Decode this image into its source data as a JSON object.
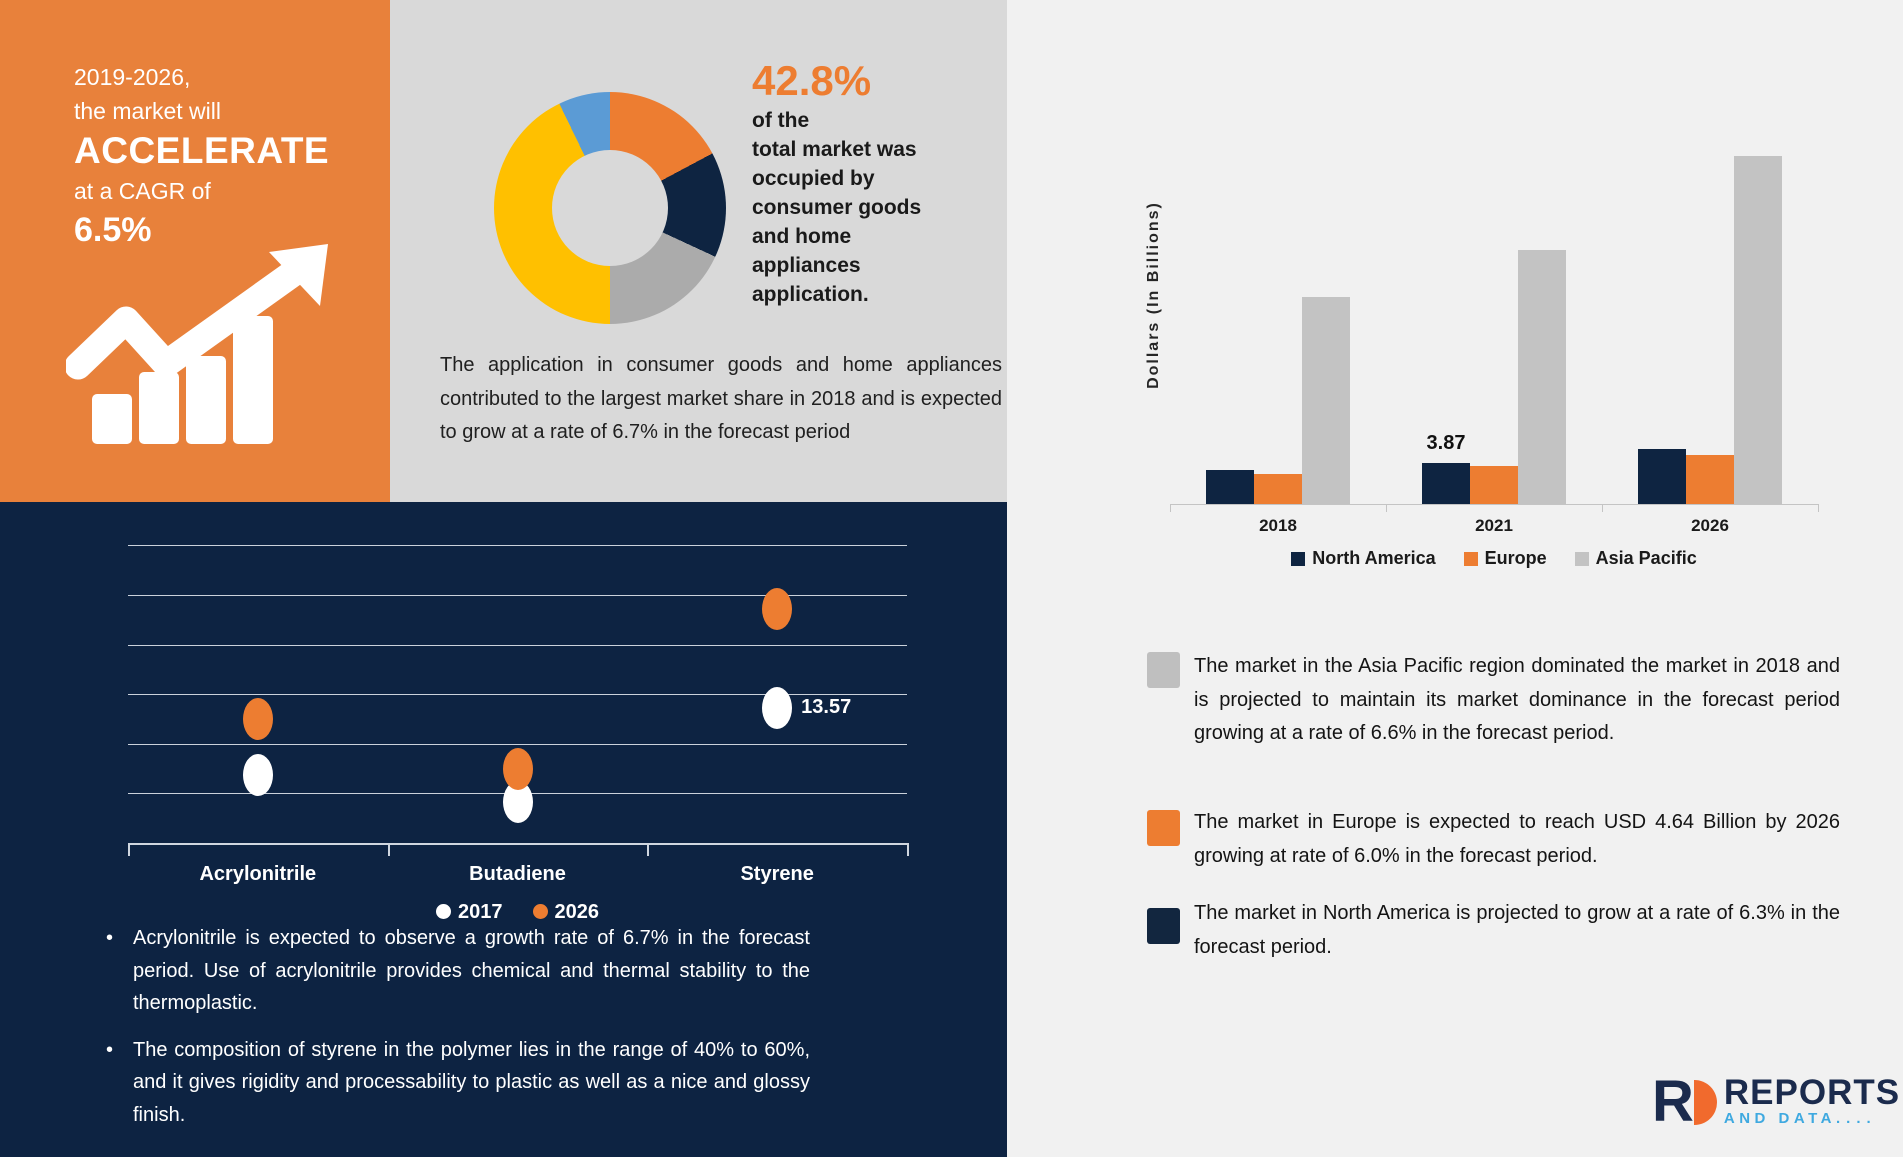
{
  "highlight_panel": {
    "period": "2019-2026,",
    "line1": "the market will",
    "accelerate": "ACCELERATE",
    "line2": "at a CAGR of",
    "cagr": "6.5%"
  },
  "application_panel": {
    "stat_value": "42.8%",
    "stat_lines": [
      "of the",
      "total market was",
      "occupied by",
      "consumer goods",
      "and home",
      "appliances",
      "application."
    ],
    "caption": "The application in consumer goods and home appliances contributed to the largest market share in 2018 and is expected to grow at a rate of 6.7% in the forecast period"
  },
  "chart_data": [
    {
      "type": "pie",
      "subtype": "donut",
      "highlight_value": "42.8%",
      "slices": [
        {
          "label": "",
          "value": 17.2,
          "color": "#ED7D31"
        },
        {
          "label": "",
          "value": 14.7,
          "color": "#0E2441"
        },
        {
          "label": "",
          "value": 18.1,
          "color": "#ABABAB"
        },
        {
          "label": "Consumer goods and home appliances",
          "value": 42.8,
          "color": "#FFC000"
        },
        {
          "label": "",
          "value": 7.2,
          "color": "#5B9BD5"
        }
      ],
      "legend_position": "none"
    },
    {
      "type": "bar",
      "categories": [
        "2018",
        "2021",
        "2026"
      ],
      "series": [
        {
          "name": "North America",
          "color": "#0E2441",
          "values": [
            3.2,
            3.87,
            5.2
          ]
        },
        {
          "name": "Europe",
          "color": "#ED7D31",
          "values": [
            2.8,
            3.6,
            4.64
          ]
        },
        {
          "name": "Asia Pacific",
          "color": "#C3C3C3",
          "values": [
            19.5,
            24.0,
            32.8
          ]
        }
      ],
      "data_labels": [
        {
          "series": "North America",
          "category": "2021",
          "text": "3.87"
        }
      ],
      "title": "",
      "xlabel": "",
      "ylabel": "Dollars (In Billions)",
      "ylim": [
        0,
        34
      ],
      "grid": false,
      "legend_position": "bottom"
    },
    {
      "type": "scatter",
      "subtype": "dot-plot",
      "categories": [
        "Acrylonitrile",
        "Butadiene",
        "Styrene"
      ],
      "series": [
        {
          "name": "2017",
          "color": "#FFFFFF",
          "values": [
            6.9,
            4.1,
            13.57
          ]
        },
        {
          "name": "2026",
          "color": "#ED7D31",
          "values": [
            12.5,
            7.5,
            23.6
          ]
        }
      ],
      "data_labels": [
        {
          "series": "2017",
          "category": "Styrene",
          "text": "13.57"
        }
      ],
      "gridline_values": [
        5,
        10,
        15,
        20,
        25,
        30
      ],
      "ylim": [
        0,
        34
      ],
      "grid": true,
      "legend_position": "bottom"
    }
  ],
  "material_notes": [
    "Acrylonitrile is expected to observe a growth rate of 6.7% in the forecast period. Use of acrylonitrile provides chemical and thermal stability to the thermoplastic.",
    "The composition of styrene in the polymer lies in the range of 40% to 60%, and it gives rigidity and processability to plastic as well as a nice and glossy finish."
  ],
  "region_notes": [
    {
      "color": "#BFBFBF",
      "text": "The market in the Asia Pacific region dominated the market in 2018 and is projected to maintain its market dominance in the forecast period growing at a rate of 6.6% in the forecast period."
    },
    {
      "color": "#ED7D31",
      "text": "The market in Europe is expected to reach USD 4.64 Billion by 2026 growing at rate of 6.0% in the forecast period."
    },
    {
      "color": "#12263F",
      "text": "The market in North America is projected to grow at a rate of 6.3% in the forecast period."
    }
  ],
  "logo": {
    "mark": "R",
    "reports": "REPORTS",
    "and_data": "AND DATA",
    "dots": "...."
  },
  "colors": {
    "accent_orange": "#ED7D31",
    "panel_orange": "#E8813B",
    "navy": "#0E2441",
    "panel_navy": "#0D2342",
    "yellow": "#FFC000",
    "blue": "#5B9BD5",
    "gray_slice": "#ABABAB",
    "gray_bar": "#C3C3C3",
    "panel_gray": "#D9D9D9",
    "panel_light": "#F1F1F1",
    "logo_navy": "#1B2B4D",
    "logo_blue": "#3FA9E0"
  }
}
